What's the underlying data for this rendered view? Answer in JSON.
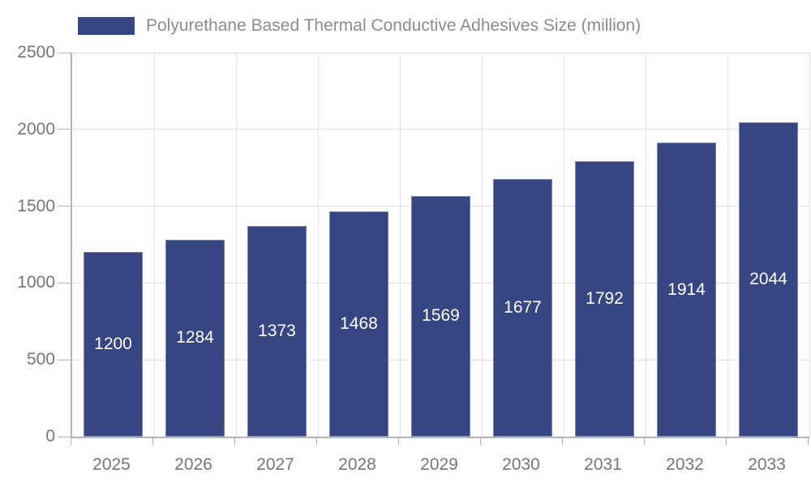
{
  "legend": {
    "label": "Polyurethane Based Thermal Conductive Adhesives Size (million)"
  },
  "chart_data": {
    "type": "bar",
    "title": "Polyurethane Based Thermal Conductive Adhesives Size (million)",
    "categories": [
      "2025",
      "2026",
      "2027",
      "2028",
      "2029",
      "2030",
      "2031",
      "2032",
      "2033"
    ],
    "values": [
      1200,
      1284,
      1373,
      1468,
      1569,
      1677,
      1792,
      1914,
      2044
    ],
    "series_name": "Polyurethane Based Thermal Conductive Adhesives Size (million)",
    "xlabel": "",
    "ylabel": "",
    "ylim": [
      0,
      2500
    ],
    "yticks": [
      0,
      500,
      1000,
      1500,
      2000,
      2500
    ],
    "grid": true,
    "legend_position": "top-left",
    "value_labels": "inside-center"
  },
  "colors": {
    "bar": "#354682",
    "value_label": "#ffffff",
    "axis_line": "#b3b3b3",
    "grid_line_h": "#e0e0e0",
    "grid_line_v": "#e4e4e4",
    "tick_label": "#767676",
    "legend_text": "#8c8c8c",
    "background": "#ffffff"
  }
}
